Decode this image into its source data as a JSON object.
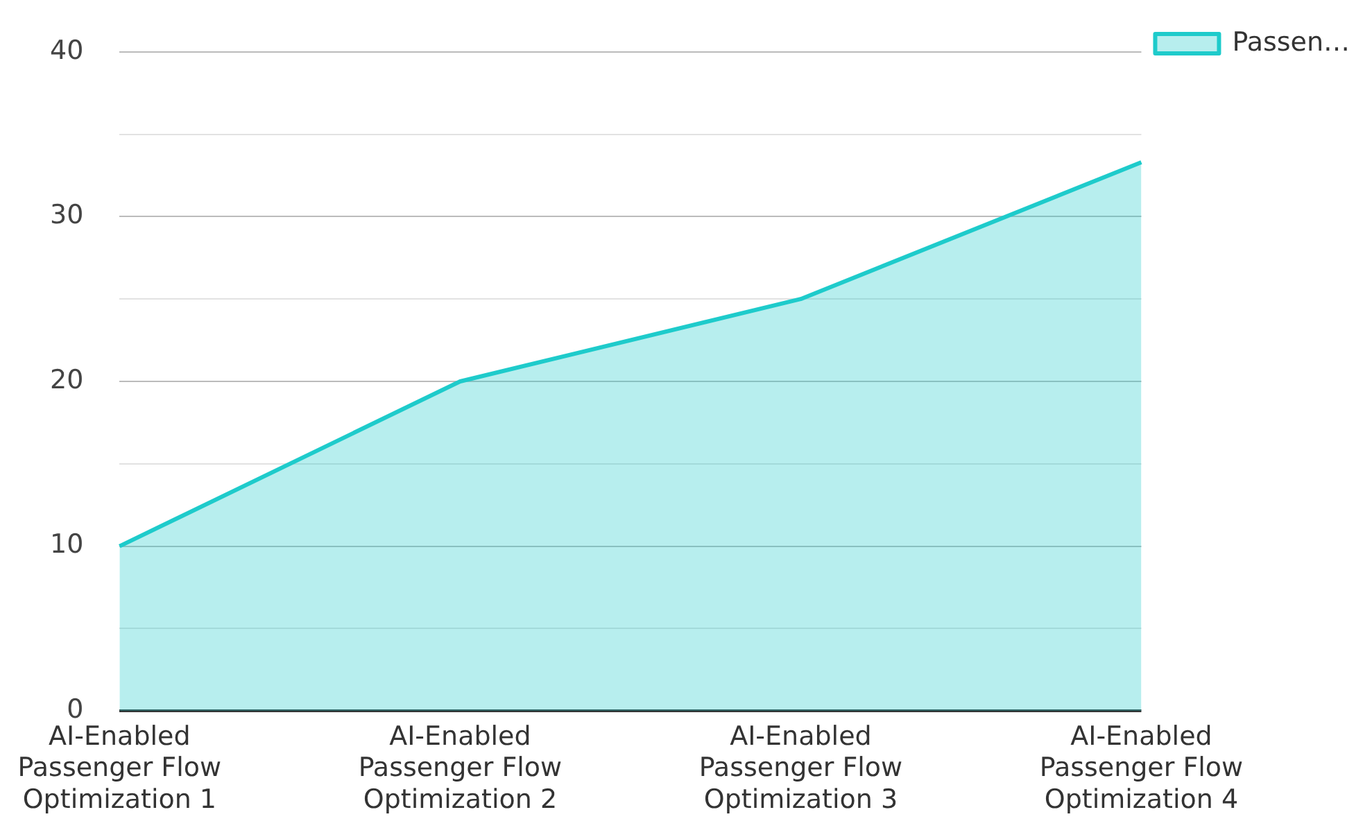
{
  "chart_data": {
    "type": "area",
    "categories": [
      "AI-Enabled Passenger Flow Optimization 1",
      "AI-Enabled Passenger Flow Optimization 2",
      "AI-Enabled Passenger Flow Optimization 3",
      "AI-Enabled Passenger Flow Optimization 4"
    ],
    "series": [
      {
        "name": "Passen…",
        "color": "#1ecbcb",
        "values": [
          10,
          20,
          25,
          33.3
        ]
      }
    ],
    "ylim": [
      0,
      40
    ],
    "yticks": [
      0,
      {
        "value": 5,
        "label": null
      },
      10,
      {
        "value": 15,
        "label": null
      },
      20,
      {
        "value": 25,
        "label": null
      },
      30,
      {
        "value": 35,
        "label": null
      },
      40
    ],
    "grid": "y",
    "legend": "top right"
  }
}
